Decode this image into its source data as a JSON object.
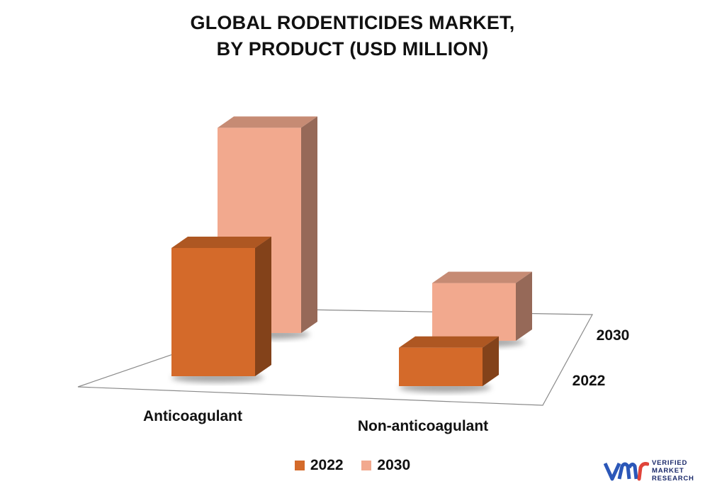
{
  "title_line1": "GLOBAL RODENTICIDES MARKET,",
  "title_line2": "BY PRODUCT (USD MILLION)",
  "colors": {
    "2022": "#d46a2a",
    "2030": "#f2a98e"
  },
  "brand": {
    "line1": "VERIFIED",
    "line2": "MARKET",
    "line3": "RESEARCH",
    "logo_icon": "vmr-logo-icon"
  },
  "chart_data": {
    "type": "bar",
    "subtype": "3d-clustered-depth",
    "categories": [
      "Anticoagulant",
      "Non-anticoagulant"
    ],
    "series": [
      {
        "name": "2022",
        "values": [
          100,
          30
        ]
      },
      {
        "name": "2030",
        "values": [
          160,
          45
        ]
      }
    ],
    "depth_labels": [
      "2022",
      "2030"
    ],
    "legend": [
      "2022",
      "2030"
    ],
    "legend_position": "bottom",
    "grid": false
  }
}
